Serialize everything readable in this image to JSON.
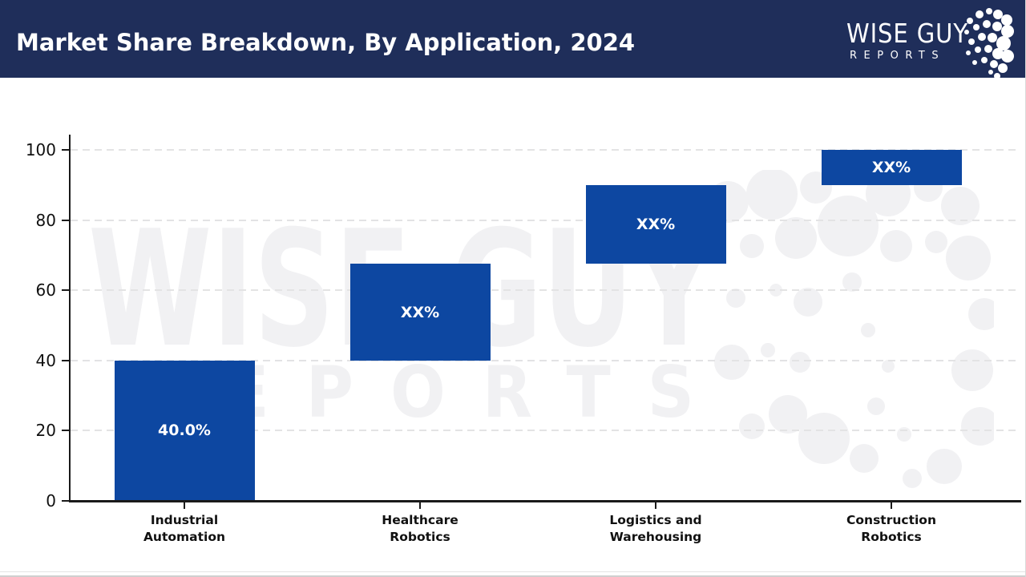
{
  "header": {
    "title": "Market Share Breakdown, By Application, 2024",
    "logo_line1": "WISE GUY",
    "logo_line2": "REPORTS",
    "bg_color": "#1f2e5a"
  },
  "watermark": {
    "line1": "WISE GUY",
    "line2": "REPORTS"
  },
  "chart_data": {
    "type": "bar",
    "variant": "waterfall",
    "title": "Market Share Breakdown, By Application, 2024",
    "categories": [
      [
        "Industrial",
        "Automation"
      ],
      [
        "Healthcare",
        "Robotics"
      ],
      [
        "Logistics and",
        "Warehousing"
      ],
      [
        "Construction",
        "Robotics"
      ]
    ],
    "bars": [
      {
        "category": "Industrial Automation",
        "start": 0,
        "end": 40,
        "value": 40.0,
        "label": "40.0%"
      },
      {
        "category": "Healthcare Robotics",
        "start": 40,
        "end": 67.5,
        "value": 27.5,
        "label": "XX%"
      },
      {
        "category": "Logistics and Warehousing",
        "start": 67.5,
        "end": 90,
        "value": 22.5,
        "label": "XX%"
      },
      {
        "category": "Construction Robotics",
        "start": 90,
        "end": 100,
        "value": 10.0,
        "label": "XX%"
      }
    ],
    "xlabel": "",
    "ylabel": "",
    "ylim": [
      0,
      100
    ],
    "yticks": [
      0,
      20,
      40,
      60,
      80,
      100
    ],
    "grid": "horizontal-dashed",
    "legend": "none",
    "bar_color": "#0d47a1",
    "bar_label_color": "#ffffff",
    "axis_color": "#1a1a1a"
  }
}
